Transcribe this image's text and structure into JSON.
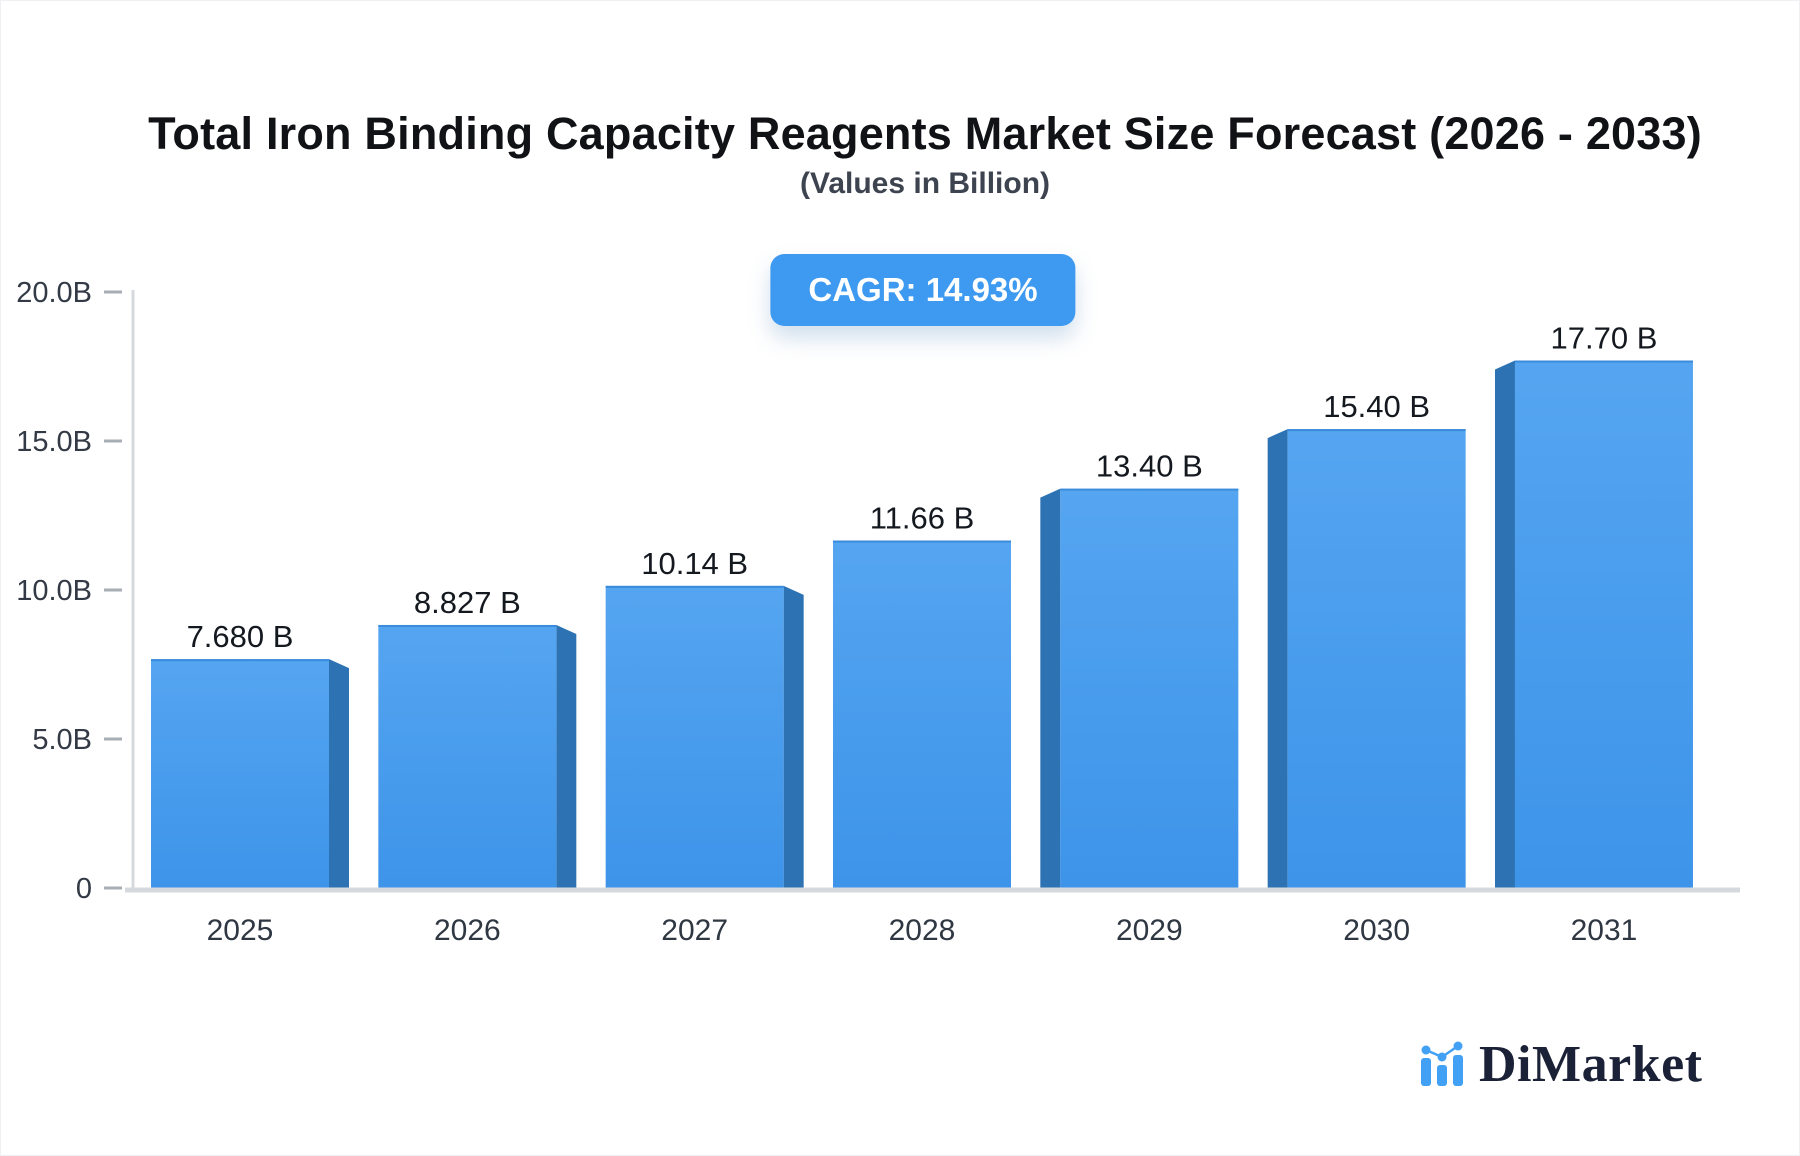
{
  "header": {
    "title": "Total Iron Binding Capacity Reagents Market Size Forecast (2026 - 2033)",
    "subtitle": "(Values in Billion)",
    "cagr_badge": "CAGR: 14.93%"
  },
  "chart_data": {
    "type": "bar",
    "title": "Total Iron Binding Capacity Reagents Market Size Forecast (2026 - 2033)",
    "subtitle": "(Values in Billion)",
    "annotation": "CAGR: 14.93%",
    "categories": [
      "2025",
      "2026",
      "2027",
      "2028",
      "2029",
      "2030",
      "2031"
    ],
    "values": [
      7.68,
      8.827,
      10.14,
      11.66,
      13.4,
      15.4,
      17.7
    ],
    "value_labels": [
      "7.680 B",
      "8.827 B",
      "10.14 B",
      "11.66 B",
      "13.40 B",
      "15.40 B",
      "17.70 B"
    ],
    "xlabel": "",
    "ylabel": "",
    "ylim": [
      0,
      20
    ],
    "ytick_values": [
      0,
      5,
      10,
      15,
      20
    ],
    "ytick_labels": [
      "0",
      "5.0B",
      "10.0B",
      "15.0B",
      "20.0B"
    ],
    "grid": false,
    "legend": false,
    "bar_style": "3d-extruded-toward-center",
    "colors": {
      "bar_face_top": "#55a5f1",
      "bar_face_bottom": "#3d94e9",
      "bar_top_edge": "#3687d8",
      "bar_side": "#2d73b4",
      "axis_line": "#d5d8dd",
      "tick_mark": "#a8aeb6",
      "axis_label": "#333a45",
      "category_label": "#2f3742",
      "value_label": "#14181f",
      "badge_background": "#3d9af0",
      "badge_text": "#ffffff"
    }
  },
  "branding": {
    "name": "DiMarket",
    "logo_icon": "bar-line-chart-icon",
    "logo_icon_color": "#42a0f5",
    "logo_text_color": "#1b2136"
  }
}
